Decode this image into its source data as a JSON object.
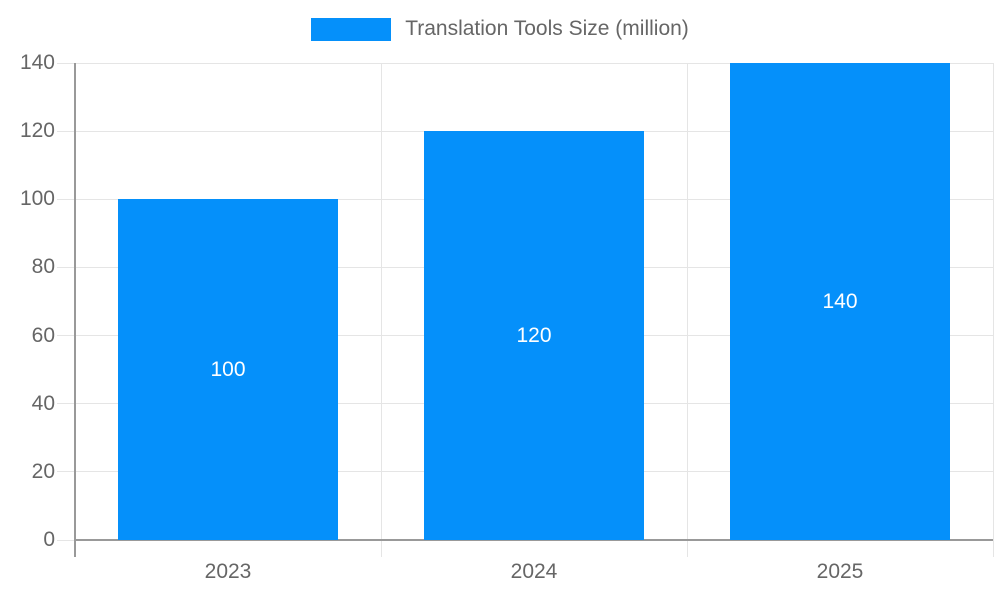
{
  "legend": {
    "label": "Translation Tools Size (million)"
  },
  "chart_data": {
    "type": "bar",
    "title": "",
    "xlabel": "",
    "ylabel": "",
    "categories": [
      "2023",
      "2024",
      "2025"
    ],
    "series": [
      {
        "name": "Translation Tools Size (million)",
        "values": [
          100,
          120,
          140
        ]
      }
    ],
    "values": [
      100,
      120,
      140
    ],
    "data_labels": [
      "100",
      "120",
      "140"
    ],
    "yticks": [
      0,
      20,
      40,
      60,
      80,
      100,
      120,
      140
    ],
    "ylim": [
      0,
      140
    ],
    "grid": true,
    "legend_position": "top-center",
    "colors": {
      "bar": "#0590fa",
      "grid": "#e5e5e5",
      "axis": "#999999",
      "tick_text": "#666666",
      "data_label_text": "#ffffff"
    }
  }
}
